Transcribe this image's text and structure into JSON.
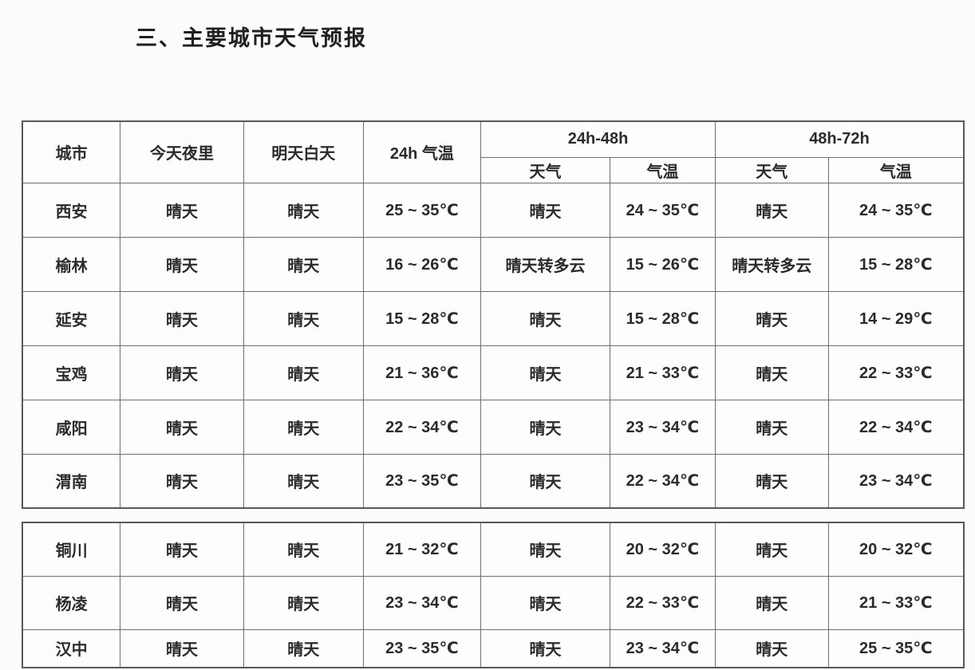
{
  "page": {
    "title": "三、主要城市天气预报"
  },
  "colors": {
    "background": "#fcfcfc",
    "border": "#6f6f6f",
    "text": "#2b2b2b"
  },
  "table": {
    "header": {
      "city": "城市",
      "tonight": "今天夜里",
      "tomorrow_daytime": "明天白天",
      "temp_24h": "24h 气温",
      "span_24_48": "24h-48h",
      "span_48_72": "48h-72h",
      "weather_24_48": "天气",
      "temp_24_48": "气温",
      "weather_48_72": "天气",
      "temp_48_72": "气温"
    },
    "sections": [
      {
        "rows": [
          {
            "city": "西安",
            "cells": [
              "晴天",
              "晴天",
              "25 ~ 35℃",
              "晴天",
              "24 ~ 35℃",
              "晴天",
              "24 ~ 35℃"
            ]
          },
          {
            "city": "榆林",
            "cells": [
              "晴天",
              "晴天",
              "16 ~ 26℃",
              "晴天转多云",
              "15 ~ 26℃",
              "晴天转多云",
              "15 ~ 28℃"
            ]
          },
          {
            "city": "延安",
            "cells": [
              "晴天",
              "晴天",
              "15 ~ 28℃",
              "晴天",
              "15 ~ 28℃",
              "晴天",
              "14 ~ 29℃"
            ]
          },
          {
            "city": "宝鸡",
            "cells": [
              "晴天",
              "晴天",
              "21 ~ 36℃",
              "晴天",
              "21 ~ 33℃",
              "晴天",
              "22 ~ 33℃"
            ]
          },
          {
            "city": "咸阳",
            "cells": [
              "晴天",
              "晴天",
              "22 ~ 34℃",
              "晴天",
              "23 ~ 34℃",
              "晴天",
              "22 ~ 34℃"
            ]
          },
          {
            "city": "渭南",
            "cells": [
              "晴天",
              "晴天",
              "23 ~ 35℃",
              "晴天",
              "22 ~ 34℃",
              "晴天",
              "23 ~ 34℃"
            ]
          }
        ]
      },
      {
        "rows": [
          {
            "city": "铜川",
            "cells": [
              "晴天",
              "晴天",
              "21 ~ 32℃",
              "晴天",
              "20 ~ 32℃",
              "晴天",
              "20 ~ 32℃"
            ]
          },
          {
            "city": "杨凌",
            "cells": [
              "晴天",
              "晴天",
              "23 ~ 34℃",
              "晴天",
              "22 ~ 33℃",
              "晴天",
              "21 ~ 33℃"
            ]
          },
          {
            "city": "汉中",
            "cells": [
              "晴天",
              "晴天",
              "23 ~ 35℃",
              "晴天",
              "23 ~ 34℃",
              "晴天",
              "25 ~ 35℃"
            ]
          }
        ]
      }
    ]
  }
}
